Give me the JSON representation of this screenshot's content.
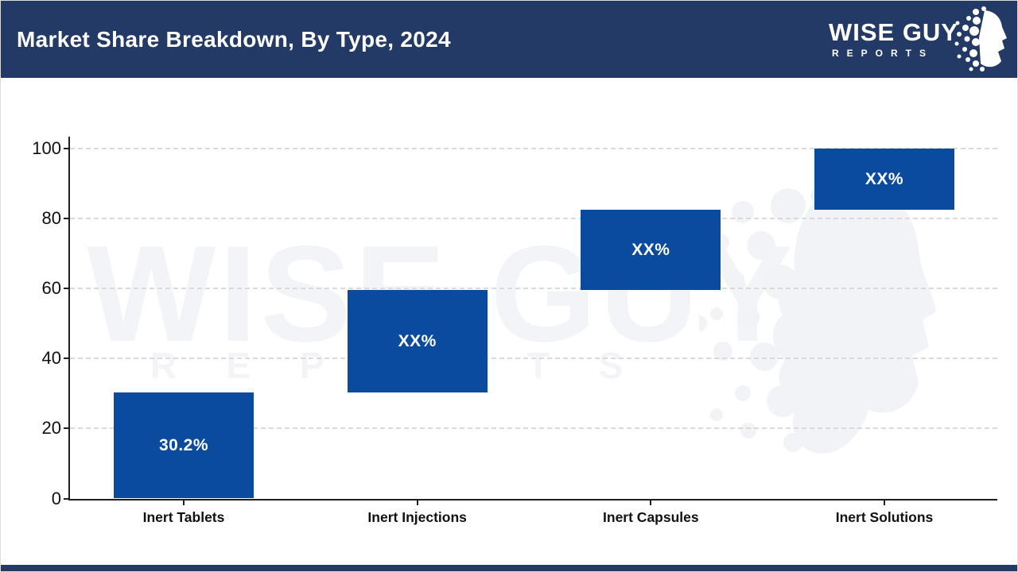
{
  "header": {
    "title": "Market Share Breakdown, By Type, 2024",
    "logo": {
      "line1": "WISE GUY",
      "line2": "REPORTS"
    }
  },
  "watermark": {
    "line1": "WISE GUY",
    "line2": "REPORTS"
  },
  "colors": {
    "header_bg": "#233a66",
    "bar_fill": "#0b4b9f",
    "bar_label_text": "#ffffff",
    "grid": "#dadada",
    "axis": "#1f1f1f",
    "watermark": "#f2f3f7"
  },
  "chart_data": {
    "type": "bar",
    "subtype": "waterfall",
    "title": "Market Share Breakdown, By Type, 2024",
    "categories": [
      "Inert Tablets",
      "Inert Injections",
      "Inert Capsules",
      "Inert Solutions"
    ],
    "segments": [
      {
        "category": "Inert Tablets",
        "start": 0,
        "end": 30.2,
        "label": "30.2%"
      },
      {
        "category": "Inert Injections",
        "start": 30.2,
        "end": 59.5,
        "label": "XX%"
      },
      {
        "category": "Inert Capsules",
        "start": 59.5,
        "end": 82.5,
        "label": "XX%"
      },
      {
        "category": "Inert Solutions",
        "start": 82.5,
        "end": 100,
        "label": "XX%"
      }
    ],
    "yticks": [
      0,
      20,
      40,
      60,
      80,
      100
    ],
    "ylim": [
      0,
      103.5
    ],
    "xlabel": "",
    "ylabel": "",
    "grid": "horizontal-dashed",
    "legend": "none"
  }
}
